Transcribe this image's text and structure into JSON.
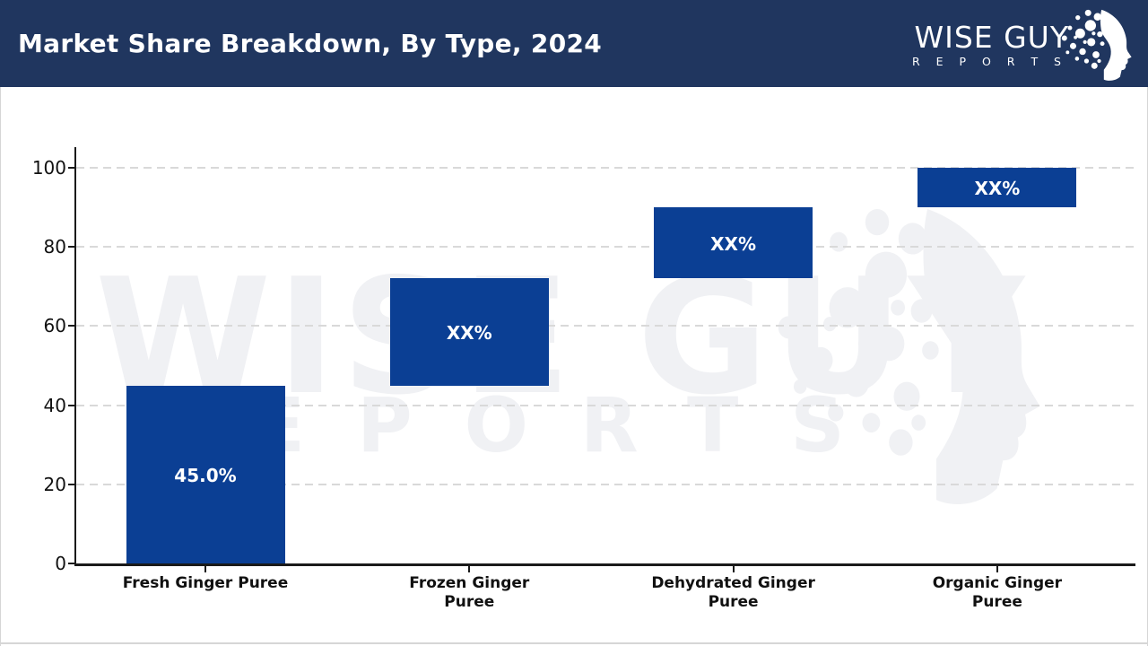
{
  "header": {
    "title": "Market Share Breakdown, By Type, 2024",
    "logo": {
      "wordmark": "WISE GUY",
      "subtext": "R E P O R T S",
      "head_icon": "dotted-face-profile"
    }
  },
  "watermark": {
    "line1": "WISE GUY",
    "line2": "REPORTS",
    "head_icon": "dotted-face-profile"
  },
  "chart_data": {
    "type": "bar",
    "subtype": "waterfall",
    "title": "Market Share Breakdown, By Type, 2024",
    "categories": [
      "Fresh Ginger Puree",
      "Frozen Ginger Puree",
      "Dehydrated Ginger Puree",
      "Organic Ginger Puree"
    ],
    "category_lines": [
      [
        "Fresh Ginger Puree"
      ],
      [
        "Frozen Ginger",
        "Puree"
      ],
      [
        "Dehydrated Ginger",
        "Puree"
      ],
      [
        "Organic Ginger",
        "Puree"
      ]
    ],
    "segments": [
      {
        "category": "Fresh Ginger Puree",
        "start": 0,
        "end": 45,
        "label": "45.0%"
      },
      {
        "category": "Frozen Ginger Puree",
        "start": 45,
        "end": 72,
        "label": "XX%"
      },
      {
        "category": "Dehydrated Ginger Puree",
        "start": 72,
        "end": 90,
        "label": "XX%"
      },
      {
        "category": "Organic Ginger Puree",
        "start": 90,
        "end": 100,
        "label": "XX%"
      }
    ],
    "xlabel": "",
    "ylabel": "",
    "ylim": [
      0,
      100
    ],
    "yticks": [
      0,
      20,
      40,
      60,
      80,
      100
    ],
    "grid": true,
    "grid_style": "dashed",
    "legend": "none",
    "bar_color": "#0b3f94",
    "bar_label_color": "#ffffff",
    "axis_color": "#1a1a1a",
    "gridline_color": "#d9d9d9",
    "header_bg_color": "#20365f",
    "watermark_color": "#f0f1f4"
  }
}
